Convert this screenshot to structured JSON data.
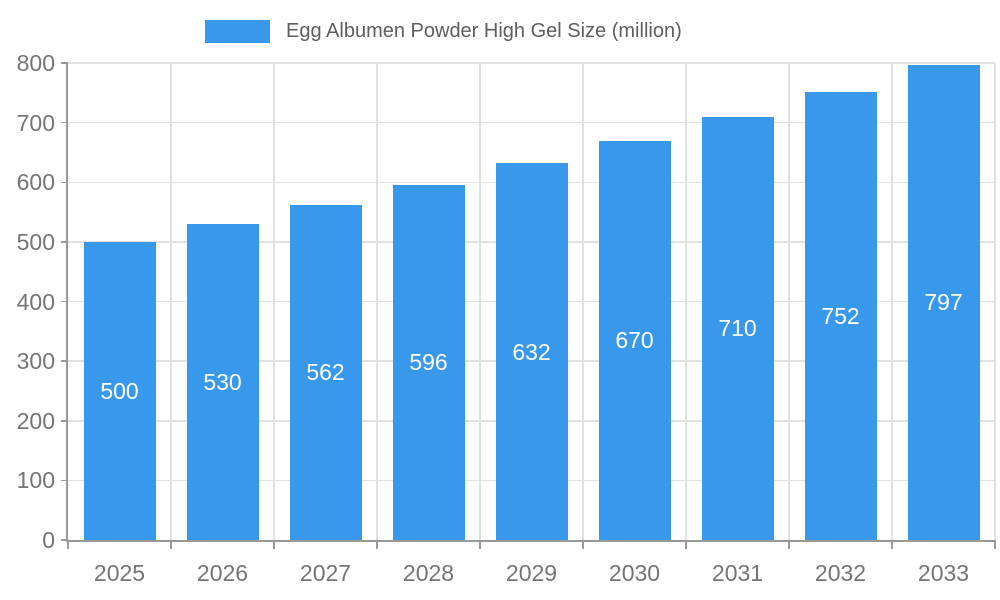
{
  "chart_data": {
    "type": "bar",
    "title": "Egg Albumen Powder High Gel Size (million)",
    "legend": [
      "Egg Albumen Powder High Gel Size (million)"
    ],
    "legend_position": "top",
    "categories": [
      "2025",
      "2026",
      "2027",
      "2028",
      "2029",
      "2030",
      "2031",
      "2032",
      "2033"
    ],
    "series": [
      {
        "name": "Egg Albumen Powder High Gel Size (million)",
        "values": [
          500,
          530,
          562,
          596,
          632,
          670,
          710,
          752,
          797
        ]
      }
    ],
    "bar_value_labels": [
      "500",
      "530",
      "562",
      "596",
      "632",
      "670",
      "710",
      "752",
      "797"
    ],
    "xlabel": "",
    "ylabel": "",
    "ylim": [
      0,
      800
    ],
    "ytick_interval": 100,
    "ytick_labels": [
      "0",
      "100",
      "200",
      "300",
      "400",
      "500",
      "600",
      "700",
      "800"
    ],
    "grid": true
  },
  "colors": {
    "bar": "#3899EC",
    "bar_label": "#FFFFFF",
    "axis_line": "#999999",
    "tick_mark": "#999999",
    "gridline": "#E1E1E1",
    "tick_label": "#757575",
    "legend_text": "#5E5E5E",
    "background": "#FFFFFF"
  }
}
